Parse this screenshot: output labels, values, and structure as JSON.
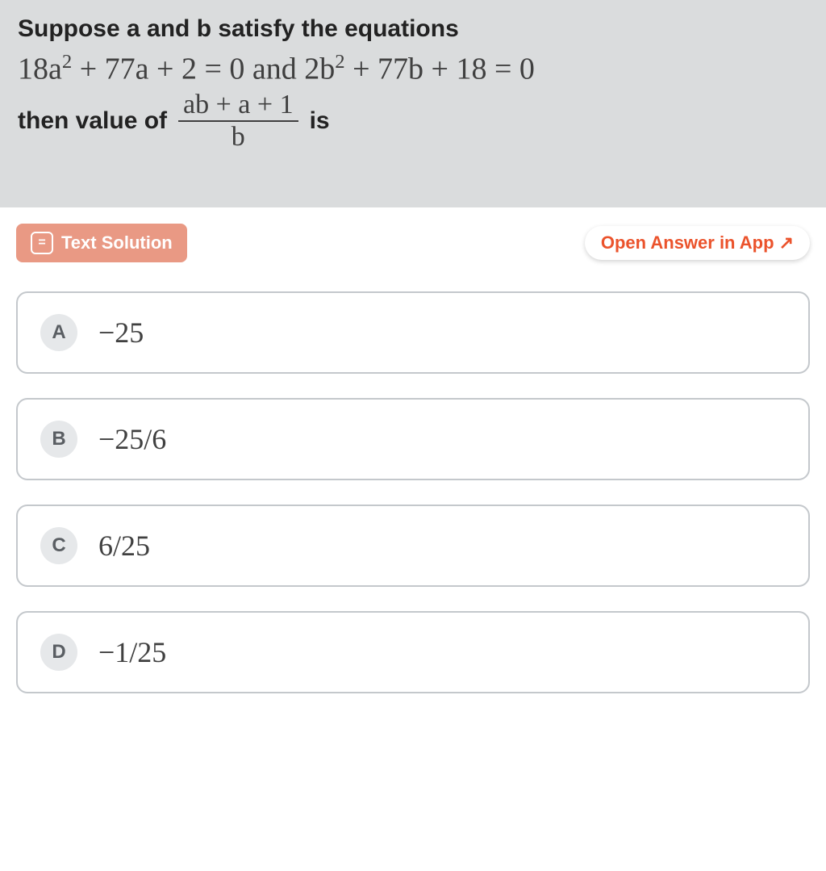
{
  "question": {
    "prompt": "Suppose a and b satisfy the equations",
    "equation_html": "18a<sup>2</sup> + 77a + 2 = 0 and 2b<sup>2</sup> + 77b + 18 = 0",
    "then_prefix": "then value of",
    "frac_num": "ab + a + 1",
    "frac_den": "b",
    "then_suffix": "is"
  },
  "buttons": {
    "text_solution": "Text Solution",
    "open_answer": "Open Answer in App",
    "arrow_glyph": "↗"
  },
  "options": [
    {
      "badge": "A",
      "text": "−25"
    },
    {
      "badge": "B",
      "text": "−25/6"
    },
    {
      "badge": "C",
      "text": "6/25"
    },
    {
      "badge": "D",
      "text": "−1/25"
    }
  ],
  "colors": {
    "question_bg": "#dadcdd",
    "answer_bg": "#ffffff",
    "text_solution_bg": "#e99984",
    "open_answer_color": "#eb532c",
    "option_border": "#c4c8cc",
    "badge_bg": "#e6e8ea",
    "badge_fg": "#5a5e63",
    "math_color": "#404040"
  },
  "fontsizes": {
    "prompt": 30,
    "equation": 38,
    "option_text": 36,
    "badge": 24,
    "button": 22
  }
}
